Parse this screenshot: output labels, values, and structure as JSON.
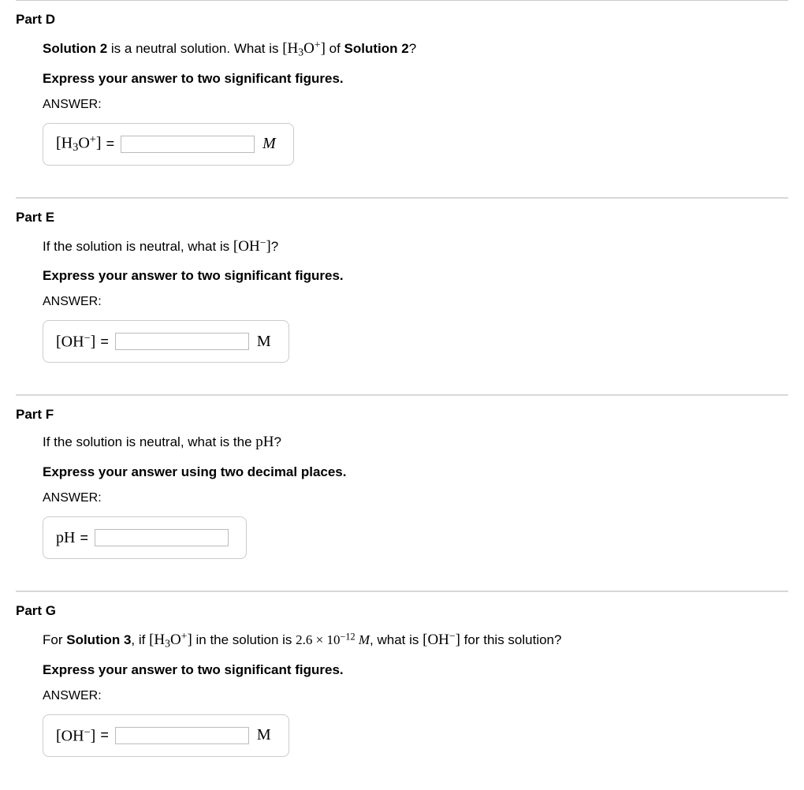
{
  "partD": {
    "header": "Part D",
    "q_prefix": "Solution 2",
    "q_mid1": " is a neutral solution. What is ",
    "q_formula": "[H₃O⁺]",
    "q_mid2": " of ",
    "q_bold2": "Solution 2",
    "q_suffix": "?",
    "instruction": "Express your answer to two significant figures.",
    "answer_label": "ANSWER:",
    "lhs": "[H₃O⁺]",
    "eq": "=",
    "unit": "M",
    "input_value": ""
  },
  "partE": {
    "header": "Part E",
    "q_text1": "If the solution is neutral, what is ",
    "q_formula": "[OH⁻]",
    "q_suffix": "?",
    "instruction": "Express your answer to two significant figures.",
    "answer_label": "ANSWER:",
    "lhs": "[OH⁻]",
    "eq": "=",
    "unit": "M",
    "input_value": ""
  },
  "partF": {
    "header": "Part F",
    "q_text1": "If the solution is neutral, what is the ",
    "q_formula": "pH",
    "q_suffix": "?",
    "instruction": "Express your answer using two decimal places.",
    "answer_label": "ANSWER:",
    "lhs": "pH",
    "eq": "=",
    "input_value": ""
  },
  "partG": {
    "header": "Part G",
    "q_prefix": "For ",
    "q_bold1": "Solution 3",
    "q_mid1": ", if ",
    "q_formula1": "[H₃O⁺]",
    "q_mid2": " in the solution is ",
    "q_value": "2.6 × 10⁻¹²",
    "q_unit": " M",
    "q_mid3": ", what is ",
    "q_formula2": "[OH⁻]",
    "q_suffix": " for this solution?",
    "instruction": "Express your answer to two significant figures.",
    "answer_label": "ANSWER:",
    "lhs": "[OH⁻]",
    "eq": "=",
    "unit": "M",
    "input_value": ""
  }
}
